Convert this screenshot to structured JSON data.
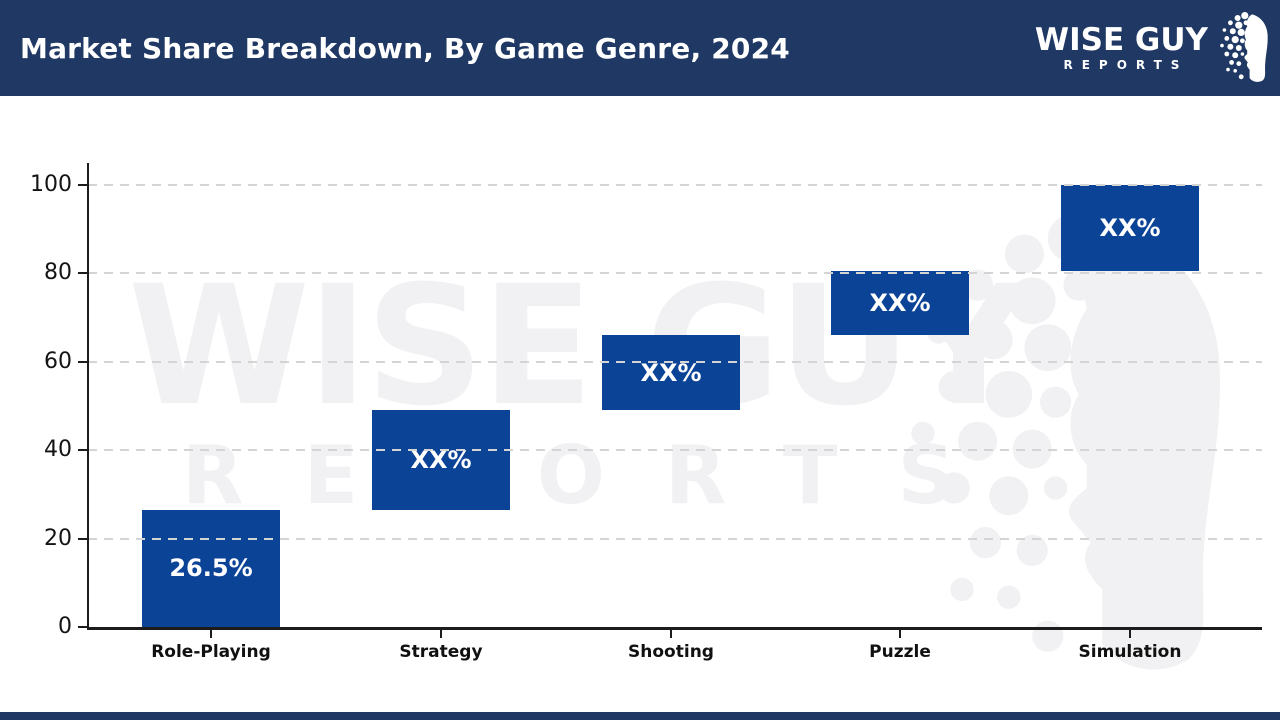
{
  "header": {
    "title": "Market Share Breakdown, By Game Genre, 2024",
    "logo": {
      "line1": "WISE GUY",
      "line2": "REPORTS"
    }
  },
  "watermark": {
    "line1": "WISE GUY",
    "line2": "REPORTS"
  },
  "colors": {
    "header_bg": "#1f3864",
    "footer_bg": "#1f3864",
    "bar": "#0b4397",
    "grid": "#d4d4d4",
    "axis": "#1c1c1c",
    "watermark": "#f1f1f3",
    "bar_label": "#ffffff"
  },
  "chart_data": {
    "type": "bar",
    "subtype": "floating-waterfall",
    "title": "Market Share Breakdown, By Game Genre, 2024",
    "categories": [
      "Role-Playing",
      "Strategy",
      "Shooting",
      "Puzzle",
      "Simulation"
    ],
    "segments": [
      {
        "category": "Role-Playing",
        "start": 0,
        "end": 26.5,
        "label": "26.5%"
      },
      {
        "category": "Strategy",
        "start": 26.5,
        "end": 49,
        "label": "XX%"
      },
      {
        "category": "Shooting",
        "start": 49,
        "end": 66,
        "label": "XX%"
      },
      {
        "category": "Puzzle",
        "start": 66,
        "end": 80.5,
        "label": "XX%"
      },
      {
        "category": "Simulation",
        "start": 80.5,
        "end": 100,
        "label": "XX%"
      }
    ],
    "ylim": [
      0,
      100
    ],
    "yticks": [
      0,
      20,
      40,
      60,
      80,
      100
    ],
    "xlabel": "",
    "ylabel": "",
    "grid": "horizontal-dashed",
    "legend": "none",
    "bar_color": "#0b4397",
    "label_color": "#ffffff"
  }
}
